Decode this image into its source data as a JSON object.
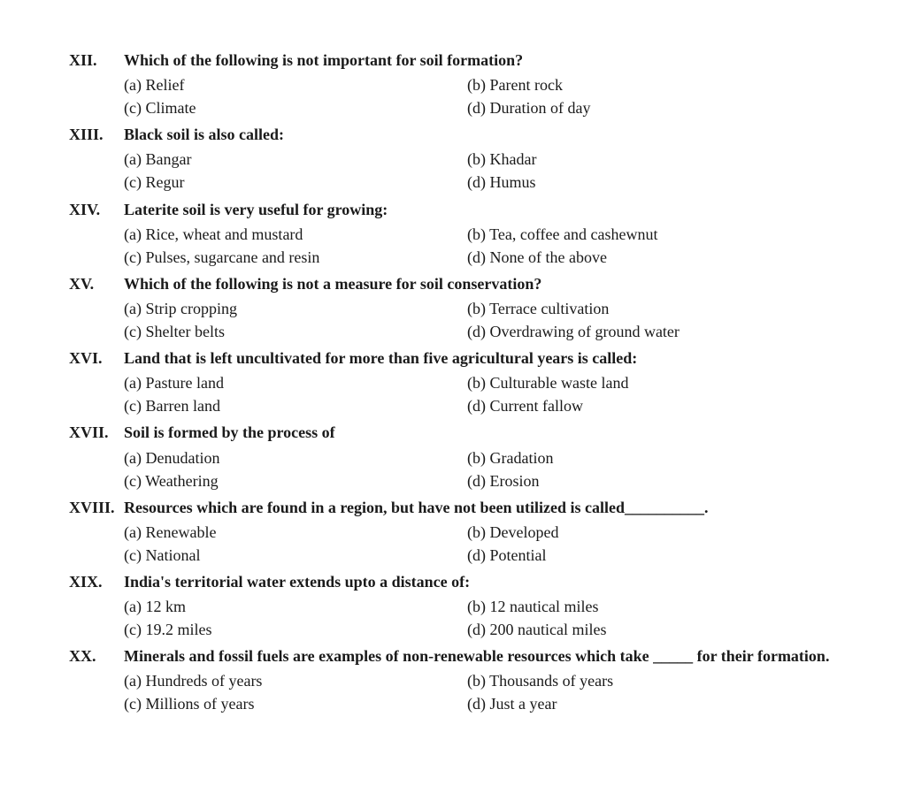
{
  "questions": [
    {
      "number": "XII.",
      "text": "Which of the following is not important for soil formation?",
      "options": {
        "a": "(a) Relief",
        "b": "(b) Parent rock",
        "c": "(c) Climate",
        "d": "(d) Duration of day"
      }
    },
    {
      "number": "XIII.",
      "text": "Black soil is also called:",
      "options": {
        "a": "(a) Bangar",
        "b": "(b) Khadar",
        "c": "(c) Regur",
        "d": "(d) Humus"
      }
    },
    {
      "number": "XIV.",
      "text": "Laterite soil is very useful for growing:",
      "options": {
        "a": "(a) Rice, wheat and mustard",
        "b": "(b) Tea, coffee and cashewnut",
        "c": "(c) Pulses, sugarcane and resin",
        "d": "(d) None of the above"
      }
    },
    {
      "number": "XV.",
      "text": "Which of the following is not a measure for soil conservation?",
      "options": {
        "a": "(a) Strip cropping",
        "b": "(b) Terrace cultivation",
        "c": "(c) Shelter belts",
        "d": "(d) Overdrawing of ground water"
      }
    },
    {
      "number": "XVI.",
      "text": "Land that is left uncultivated for more than five agricultural years is called:",
      "options": {
        "a": "(a) Pasture land",
        "b": "(b) Culturable waste land",
        "c": "(c) Barren land",
        "d": "(d) Current fallow"
      }
    },
    {
      "number": "XVII.",
      "text": "Soil is formed by the process of",
      "options": {
        "a": "(a) Denudation",
        "b": "(b) Gradation",
        "c": "(c) Weathering",
        "d": "(d) Erosion"
      }
    },
    {
      "number": "XVIII.",
      "text": "Resources which are found in a region, but have not been utilized is called__________.",
      "options": {
        "a": "(a) Renewable",
        "b": "(b) Developed",
        "c": "(c) National",
        "d": "(d) Potential"
      }
    },
    {
      "number": "XIX.",
      "text": "India's territorial water extends upto a distance of:",
      "options": {
        "a": "(a) 12 km",
        "b": "(b) 12 nautical miles",
        "c": "(c) 19.2 miles",
        "d": "(d) 200 nautical miles"
      }
    },
    {
      "number": "XX.",
      "text": "Minerals and fossil fuels are examples of non-renewable resources which take _____ for their formation.",
      "options": {
        "a": "(a) Hundreds of years",
        "b": "(b) Thousands of years",
        "c": "(c) Millions of years",
        "d": "(d) Just a year"
      }
    }
  ]
}
